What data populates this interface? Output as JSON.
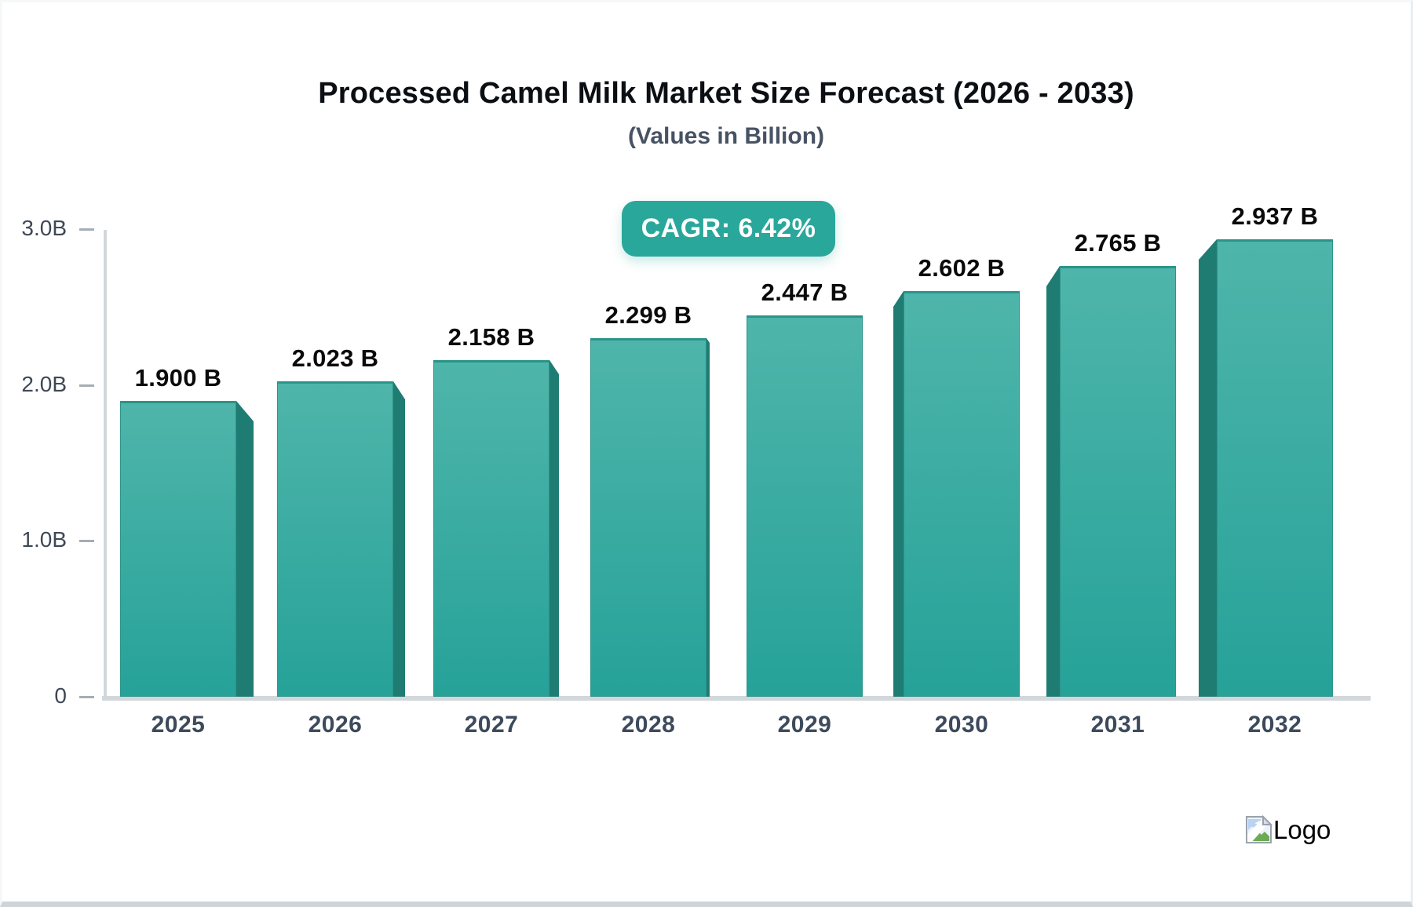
{
  "page": {
    "logo_alt": "Logo"
  },
  "chart_data": {
    "type": "bar",
    "title": "Processed Camel Milk Market Size Forecast (2026 - 2033)",
    "subtitle": "(Values in Billion)",
    "badge_label": "CAGR: 6.42%",
    "categories": [
      "2025",
      "2026",
      "2027",
      "2028",
      "2029",
      "2030",
      "2031",
      "2032"
    ],
    "values": [
      1.9,
      2.023,
      2.158,
      2.299,
      2.447,
      2.602,
      2.765,
      2.937
    ],
    "value_labels": [
      "1.900 B",
      "2.023 B",
      "2.158 B",
      "2.299 B",
      "2.447 B",
      "2.602 B",
      "2.765 B",
      "2.937 B"
    ],
    "xlabel": "",
    "ylabel": "",
    "ylim": [
      0,
      3.0
    ],
    "yticks": [
      {
        "label": "3.0B",
        "value": 3.0
      },
      {
        "label": "2.0B",
        "value": 2.0
      },
      {
        "label": "1.0B",
        "value": 1.0
      },
      {
        "label": "0",
        "value": 0
      }
    ],
    "grid": false,
    "legend": false,
    "colors": {
      "bar_face_top": "#4fb5aa",
      "bar_face_bottom": "#26a299",
      "bar_face_border": "#2b948a",
      "bar_side": "#1f7c73",
      "badge_bg": "#2aa79b",
      "axis_line": "#d2d7db",
      "tick_dash": "#a5adb6",
      "ytick_text": "#3e4856",
      "xtick_text": "#3d4a5c",
      "value_text": "#0a0a0a",
      "title_text": "#0b0f14",
      "subtitle_text": "#475263"
    },
    "layout": {
      "perspective_side_widths": [
        22,
        15,
        12,
        4,
        0,
        13,
        17,
        23
      ],
      "perspective_side_dirs": [
        "right",
        "right",
        "right",
        "right",
        "left",
        "left",
        "left",
        "left"
      ]
    }
  }
}
